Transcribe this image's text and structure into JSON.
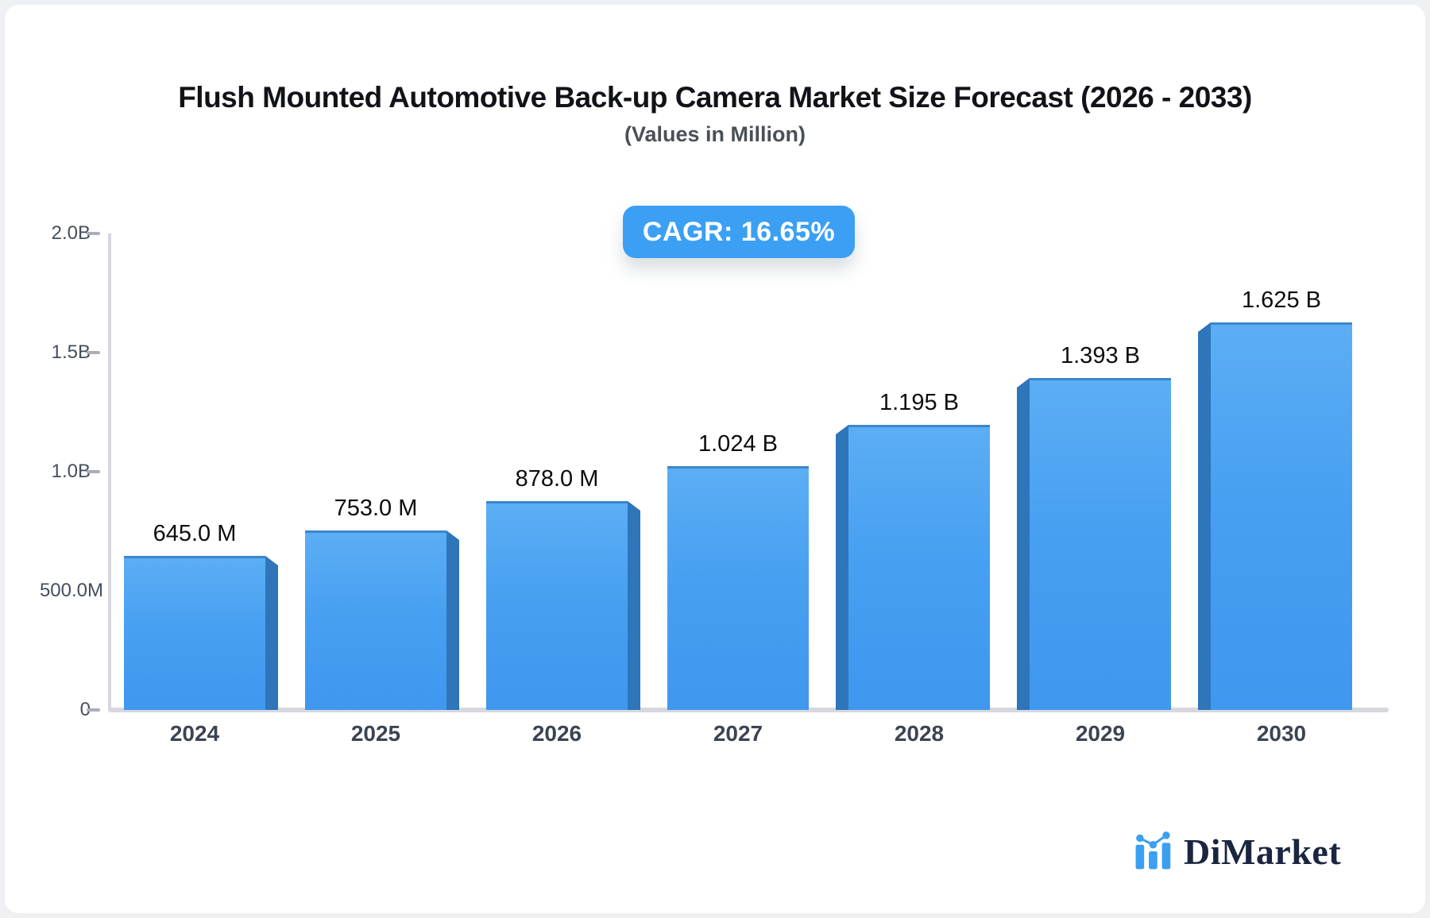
{
  "header": {
    "title": "Flush Mounted Automotive Back-up Camera Market Size Forecast (2026 - 2033)",
    "subtitle": "(Values in Million)",
    "cagr_badge": "CAGR: 16.65%"
  },
  "chart_data": {
    "type": "bar",
    "title": "Flush Mounted Automotive Back-up Camera Market Size Forecast (2026 - 2033)",
    "subtitle": "(Values in Million)",
    "cagr_percent": 16.65,
    "categories": [
      "2024",
      "2025",
      "2026",
      "2027",
      "2028",
      "2029",
      "2030"
    ],
    "values_millions": [
      645.0,
      753.0,
      878.0,
      1024,
      1195,
      1393,
      1625
    ],
    "value_labels": [
      "645.0 M",
      "753.0 M",
      "878.0 M",
      "1.024 B",
      "1.195 B",
      "1.393 B",
      "1.625 B"
    ],
    "bar_3d_side": [
      "right",
      "right",
      "right",
      "none",
      "left",
      "left",
      "left"
    ],
    "y_axis": {
      "min_millions": 0,
      "max_millions": 2000,
      "ticks": [
        {
          "label": "2.0B",
          "value_millions": 2000,
          "dash": true
        },
        {
          "label": "1.5B",
          "value_millions": 1500,
          "dash": true
        },
        {
          "label": "1.0B",
          "value_millions": 1000,
          "dash": true
        },
        {
          "label": "500.0M",
          "value_millions": 500,
          "dash": false
        },
        {
          "label": "0",
          "value_millions": 0,
          "dash": true
        }
      ]
    },
    "grid": false,
    "legend": "none",
    "colors": {
      "bar_gradient_top": "#5caef4",
      "bar_gradient_bottom": "#3f97ef",
      "bar_side": "#2e75ba",
      "bar_top_edge": "#3c86cd",
      "badge_background": "#3ba0f4",
      "axis_line": "#d6d8dd",
      "tick_text": "#454e5e",
      "category_text": "#3c4452",
      "value_text": "#0c0d0f"
    }
  },
  "footer": {
    "logo_text": "DiMarket",
    "logo_icon_color": "#3b9ff2"
  }
}
